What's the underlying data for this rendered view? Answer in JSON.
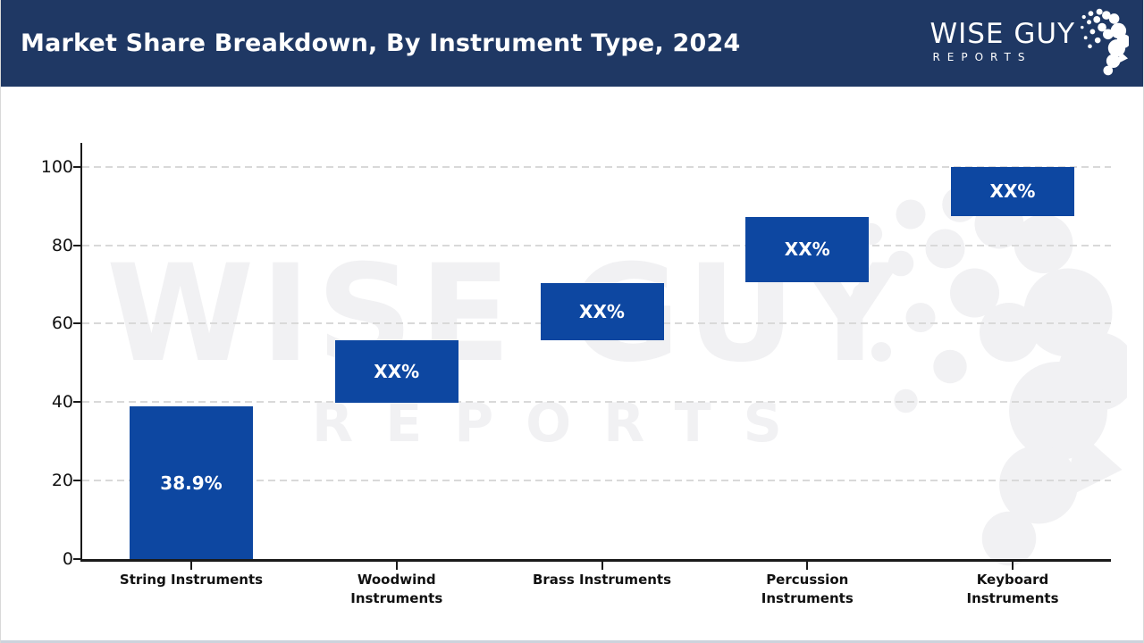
{
  "header": {
    "title": "Market Share Breakdown, By Instrument Type, 2024",
    "logo": {
      "line1": "WISE GUY",
      "line2": "REPORTS",
      "head_icon": "dotted-head-profile"
    }
  },
  "watermark": {
    "line1": "WISE GUY",
    "line2": "REPORTS",
    "head_icon": "dotted-head-profile"
  },
  "colors": {
    "header_bg": "#1f3864",
    "header_text": "#ffffff",
    "bar": "#0d47a1",
    "bar_label": "#ffffff",
    "axis": "#1a1a1a",
    "tick_label": "#111111",
    "gridline": "#d9d9d9",
    "watermark": "#f1f1f3",
    "background": "#ffffff",
    "bottom_edge": "#cdd3dc"
  },
  "chart_data": {
    "type": "bar",
    "subtype": "waterfall",
    "title": "Market Share Breakdown, By Instrument Type, 2024",
    "categories": [
      "String Instruments",
      "Woodwind Instruments",
      "Brass Instruments",
      "Percussion Instruments",
      "Keyboard Instruments"
    ],
    "category_label_lines": [
      [
        "String Instruments"
      ],
      [
        "Woodwind",
        "Instruments"
      ],
      [
        "Brass Instruments"
      ],
      [
        "Percussion",
        "Instruments"
      ],
      [
        "Keyboard",
        "Instruments"
      ]
    ],
    "segments": [
      {
        "category": "String Instruments",
        "start": 0,
        "end": 38.9,
        "label": "38.9%"
      },
      {
        "category": "Woodwind Instruments",
        "start": 39.9,
        "end": 55.8,
        "label": "XX%"
      },
      {
        "category": "Brass Instruments",
        "start": 55.8,
        "end": 70.4,
        "label": "XX%"
      },
      {
        "category": "Percussion Instruments",
        "start": 70.6,
        "end": 87.2,
        "label": "XX%"
      },
      {
        "category": "Keyboard Instruments",
        "start": 87.5,
        "end": 99.9,
        "label": "XX%"
      }
    ],
    "xlabel": "",
    "ylabel": "",
    "yticks": [
      0,
      20,
      40,
      60,
      80,
      100
    ],
    "ylim": [
      0,
      106
    ],
    "grid": "horizontal-dashed",
    "legend": "none"
  }
}
